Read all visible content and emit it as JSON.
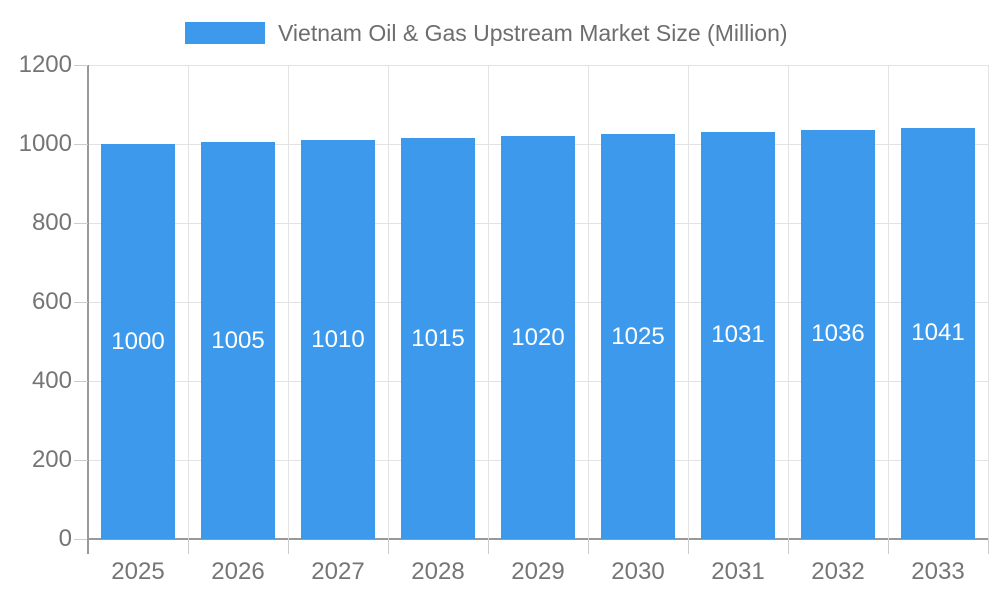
{
  "chart_data": {
    "type": "bar",
    "title": "Vietnam Oil & Gas Upstream Market Size (Million)",
    "categories": [
      "2025",
      "2026",
      "2027",
      "2028",
      "2029",
      "2030",
      "2031",
      "2032",
      "2033"
    ],
    "series": [
      {
        "name": "Vietnam Oil & Gas Upstream Market Size (Million)",
        "values": [
          1000,
          1005,
          1010,
          1015,
          1020,
          1025,
          1031,
          1036,
          1041
        ],
        "bar_labels": [
          "1000",
          "1005",
          "1010",
          "1015",
          "1020",
          "1025",
          "1031",
          "1036",
          "1041"
        ]
      }
    ],
    "xlabel": "",
    "ylabel": "",
    "ylim": [
      0,
      1200
    ],
    "yticks": [
      0,
      200,
      400,
      600,
      800,
      1000,
      1200
    ],
    "ytick_labels": [
      "0",
      "200",
      "400",
      "600",
      "800",
      "1000",
      "1200"
    ],
    "grid": true,
    "legend_position": "top",
    "colors": {
      "bar": "#3C99EC",
      "title_text": "#6E6E6E",
      "axis_label_text": "#757575",
      "value_label_text": "#FFFFFF",
      "gridline": "#E3E3E3",
      "axis_line": "#999999",
      "tick": "#CCCCCC",
      "background": "#FFFFFF"
    }
  }
}
